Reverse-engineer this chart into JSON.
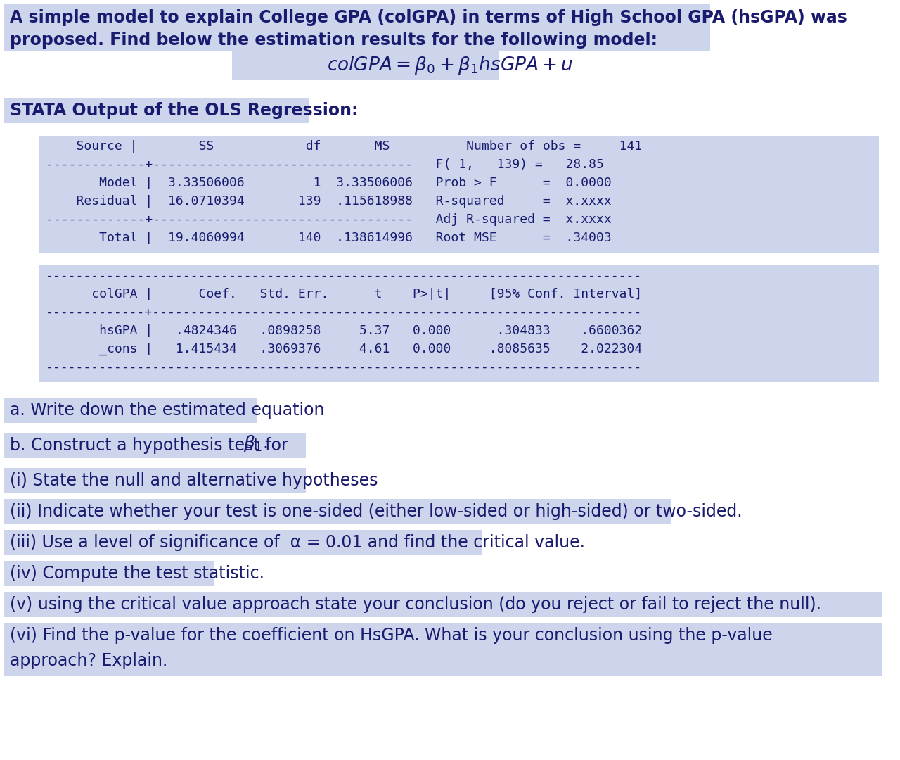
{
  "bg_color": "#ffffff",
  "highlight_color": "#cdd5ed",
  "text_color": "#1a1a6e",
  "mono_font": "DejaVu Sans Mono",
  "sans_font": "DejaVu Sans",
  "intro_text_line1": "A simple model to explain College GPA (colGPA) in terms of High School GPA (hsGPA) was",
  "intro_text_line2": "proposed. Find below the estimation results for the following model:",
  "stata_label": "STATA Output of the OLS Regression:",
  "stata_top_lines": [
    "    Source |        SS            df       MS          Number of obs =     141",
    "-------------+----------------------------------   F( 1,   139) =   28.85",
    "       Model |  3.33506006         1  3.33506006   Prob > F      =  0.0000",
    "    Residual |  16.0710394       139  .115618988   R-squared     =  x.xxxx",
    "-------------+----------------------------------   Adj R-squared =  x.xxxx",
    "       Total |  19.4060994       140  .138614996   Root MSE      =  .34003"
  ],
  "stata_bottom_lines": [
    "------------------------------------------------------------------------------",
    "      colGPA |      Coef.   Std. Err.      t    P>|t|     [95% Conf. Interval]",
    "-------------+----------------------------------------------------------------",
    "       hsGPA |   .4824346   .0898258     5.37   0.000      .304833    .6600362",
    "       _cons |   1.415434   .3069376     4.61   0.000     .8085635    2.022304",
    "------------------------------------------------------------------------------"
  ],
  "q_a": "a. Write down the estimated equation",
  "q_b_text": "b. Construct a hypothesis test for ",
  "q_i": "(i) State the null and alternative hypotheses",
  "q_ii": "(ii) Indicate whether your test is one-sided (either low-sided or high-sided) or two-sided.",
  "q_iii": "(iii) Use a level of significance of  α = 0.01 and find the critical value.",
  "q_iv": "(iv) Compute the test statistic.",
  "q_v": "(v) using the critical value approach state your conclusion (do you reject or fail to reject the null).",
  "q_vi_line1": "(vi) Find the p-value for the coefficient on HsGPA. What is your conclusion using the p-value",
  "q_vi_line2": "approach? Explain."
}
